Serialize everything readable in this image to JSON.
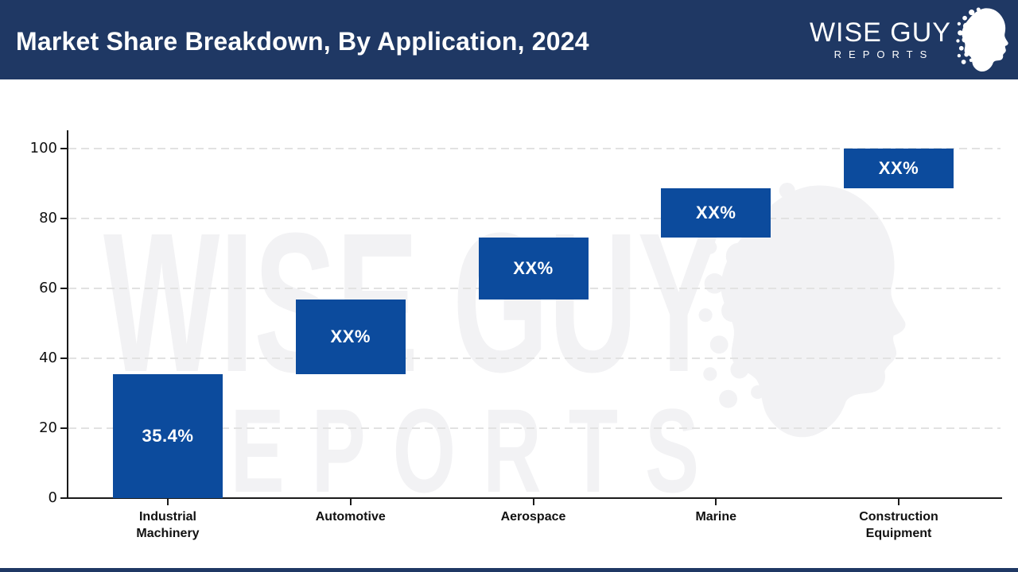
{
  "header": {
    "title": "Market Share Breakdown, By Application, 2024",
    "logo": {
      "line1": "WISE GUY",
      "line2": "REPORTS"
    }
  },
  "watermark": {
    "line1": "WISE GUY",
    "line2": "REPORTS"
  },
  "chart_data": {
    "type": "bar",
    "subtype": "waterfall",
    "title": "Market Share Breakdown, By Application, 2024",
    "categories": [
      "Industrial Machinery",
      "Automotive",
      "Aerospace",
      "Marine",
      "Construction Equipment"
    ],
    "category_labels": [
      "Industrial\nMachinery",
      "Automotive",
      "Aerospace",
      "Marine",
      "Construction\nEquipment"
    ],
    "segments": [
      {
        "category": "Industrial Machinery",
        "start": 0,
        "end": 35.4,
        "label": "35.4%"
      },
      {
        "category": "Automotive",
        "start": 35.4,
        "end": 56.8,
        "label": "XX%"
      },
      {
        "category": "Aerospace",
        "start": 56.8,
        "end": 74.5,
        "label": "XX%"
      },
      {
        "category": "Marine",
        "start": 74.5,
        "end": 88.6,
        "label": "XX%"
      },
      {
        "category": "Construction Equipment",
        "start": 88.6,
        "end": 100,
        "label": "XX%"
      }
    ],
    "xlabel": "",
    "ylabel": "",
    "ylim": [
      0,
      100
    ],
    "yticks": [
      0,
      20,
      40,
      60,
      80,
      100
    ],
    "grid": true,
    "grid_style": "dashed",
    "legend": "none",
    "bar_color": "#0c4b9d"
  },
  "colors": {
    "page": "#ffffff",
    "header_bg": "#1f3864",
    "bar": "#0c4b9d",
    "bar_label": "#ffffff",
    "watermark": "#f2f2f4",
    "grid": "#e2e2e2",
    "axis": "#1a1a1a",
    "tick_text": "#111111"
  }
}
